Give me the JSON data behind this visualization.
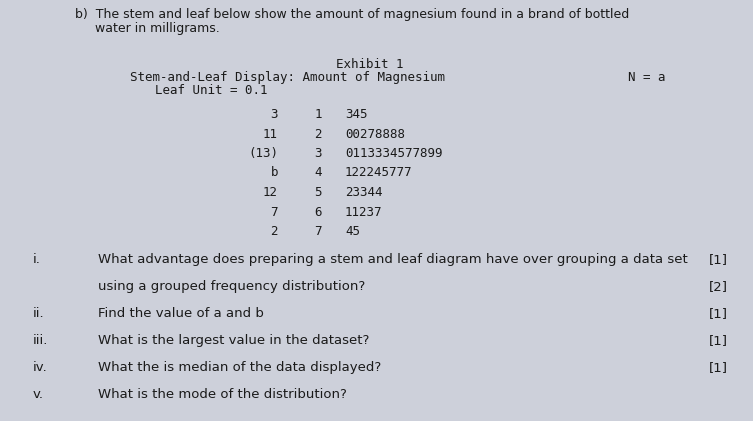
{
  "bg_color": "#cdd0da",
  "text_color": "#1a1a1a",
  "title_b_line1": "b)  The stem and leaf below show the amount of magnesium found in a brand of bottled",
  "title_b_line2": "     water in milligrams.",
  "exhibit1": "Exhibit 1",
  "exhibit2": "Stem-and-Leaf Display: Amount of Magnesium",
  "n_label": "N = a",
  "leaf_unit": "Leaf Unit = 0.1",
  "table_rows": [
    [
      "3",
      "1",
      "345"
    ],
    [
      "11",
      "2",
      "00278888"
    ],
    [
      "(13)",
      "3",
      "0113334577899"
    ],
    [
      "b",
      "4",
      "122245777"
    ],
    [
      "12",
      "5",
      "23344"
    ],
    [
      "7",
      "6",
      "11237"
    ],
    [
      "2",
      "7",
      "45"
    ]
  ],
  "questions": [
    [
      "i.",
      "What advantage does preparing a stem and leaf diagram have over grouping a data set",
      "[1]"
    ],
    [
      "",
      "using a grouped frequency distribution?",
      "[2]"
    ],
    [
      "ii.",
      "Find the value of a and b",
      "[1]"
    ],
    [
      "iii.",
      "What is the largest value in the dataset?",
      "[1]"
    ],
    [
      "iv.",
      "What the is median of the data displayed?",
      "[1]"
    ],
    [
      "v.",
      "What is the mode of the distribution?",
      ""
    ]
  ]
}
